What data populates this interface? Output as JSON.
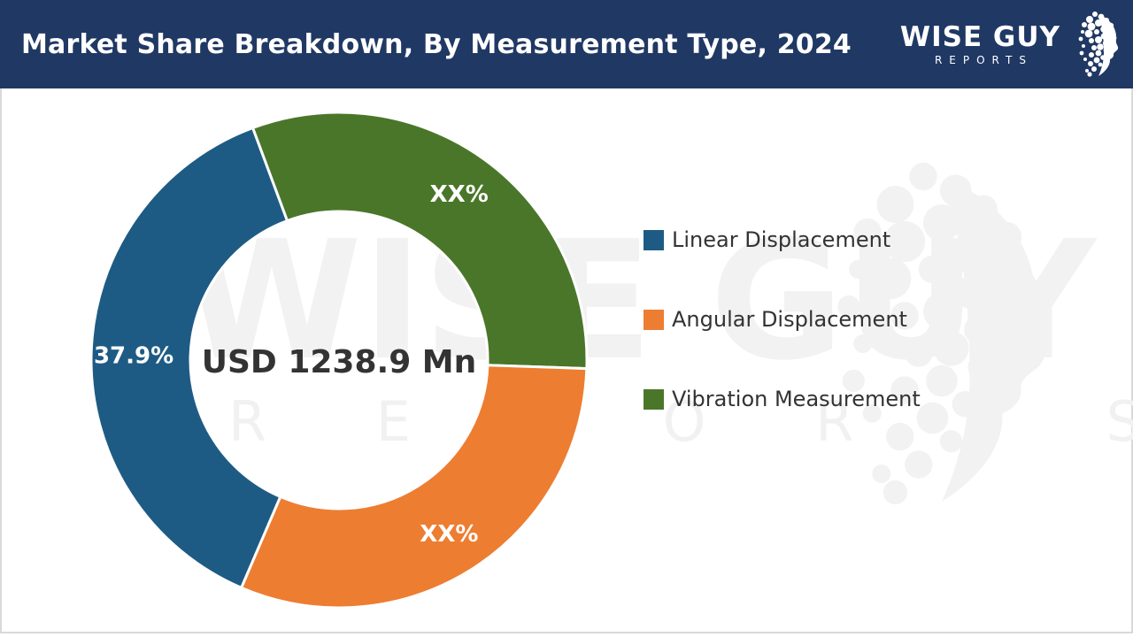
{
  "header": {
    "title": "Market Share Breakdown, By Measurement Type, 2024",
    "logo_line1": "WISE GUY",
    "logo_line2": "REPORTS"
  },
  "chart_data": {
    "type": "pie",
    "subtype": "donut",
    "title": "Market Share Breakdown, By Measurement Type, 2024",
    "center_label": "USD 1238.9 Mn",
    "start_angle_deg": 203.2,
    "inner_radius_ratio": 0.6,
    "legend_position": "right",
    "slices": [
      {
        "name": "Linear Displacement",
        "value": 37.9,
        "label": "37.9%",
        "color": "#1e5b84"
      },
      {
        "name": "Vibration Measurement",
        "value": 31.2,
        "label": "XX%",
        "color": "#4a7629"
      },
      {
        "name": "Angular Displacement",
        "value": 30.9,
        "label": "XX%",
        "color": "#ed7d31"
      }
    ]
  },
  "legend": {
    "items": [
      {
        "label": "Linear Displacement",
        "color": "#1e5b84"
      },
      {
        "label": "Angular Displacement",
        "color": "#ed7d31"
      },
      {
        "label": "Vibration Measurement",
        "color": "#4a7629"
      }
    ]
  },
  "watermark": {
    "line1": "WISE GUY",
    "line2": "R E P O R T S"
  },
  "colors": {
    "header_bg": "#203864",
    "center_text": "#333333",
    "border": "#d9d9d9",
    "watermark": "#f2f2f2"
  }
}
